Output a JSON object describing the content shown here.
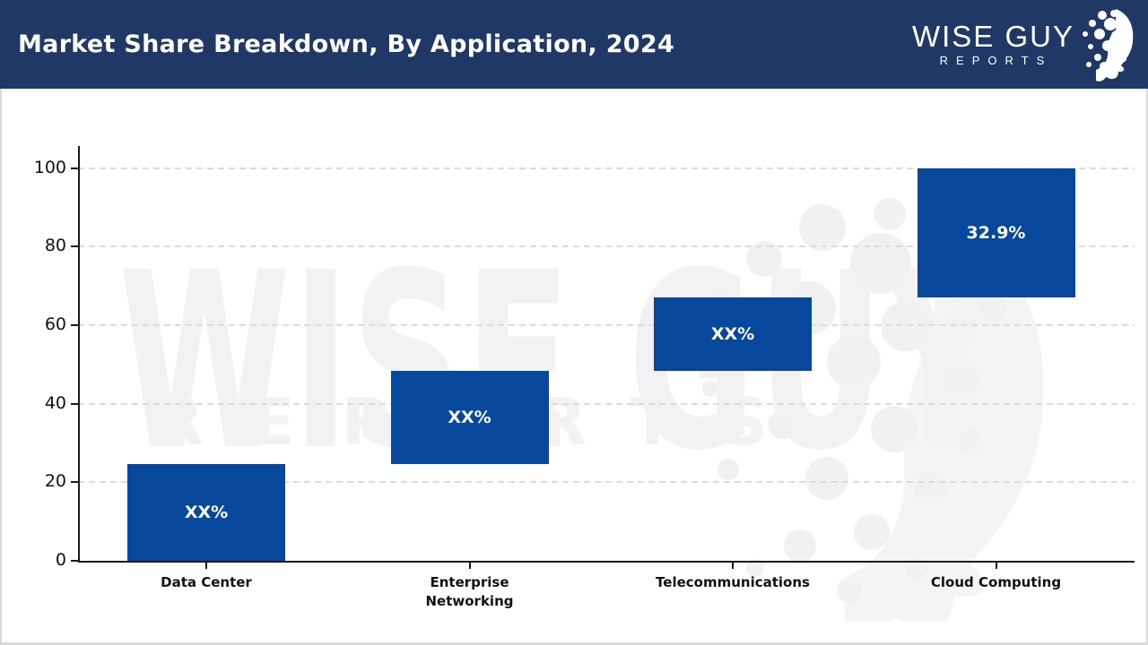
{
  "header": {
    "title": "Market Share Breakdown, By Application, 2024",
    "logo": {
      "line1": "WISE GUY",
      "line2": "REPORTS"
    }
  },
  "watermark": {
    "line1": "WISE GUY",
    "line2": "REPORTS"
  },
  "chart_data": {
    "type": "bar",
    "subtype": "waterfall",
    "title": "Market Share Breakdown, By Application, 2024",
    "categories": [
      "Data Center",
      "Enterprise\nNetworking",
      "Telecommunications",
      "Cloud Computing"
    ],
    "bars": [
      {
        "category": "Data Center",
        "start": 0,
        "end": 24.6,
        "label": "XX%"
      },
      {
        "category": "Enterprise Networking",
        "start": 24.7,
        "end": 48.3,
        "label": "XX%"
      },
      {
        "category": "Telecommunications",
        "start": 48.3,
        "end": 67.0,
        "label": "XX%"
      },
      {
        "category": "Cloud Computing",
        "start": 67.1,
        "end": 100.0,
        "label": "32.9%"
      }
    ],
    "ylim": [
      0,
      105
    ],
    "yticks": [
      0,
      20,
      40,
      60,
      80,
      100
    ],
    "grid": "dashed-horizontal",
    "legend": "none",
    "bar_color": "#08489c",
    "bar_label_color": "#ffffff",
    "axis_color": "#1a1a1a",
    "gridline_color": "#dcdcdc"
  },
  "colors": {
    "header_bg": "#1f3865",
    "page_bg": "#ffffff",
    "watermark": "#f2f2f3"
  }
}
